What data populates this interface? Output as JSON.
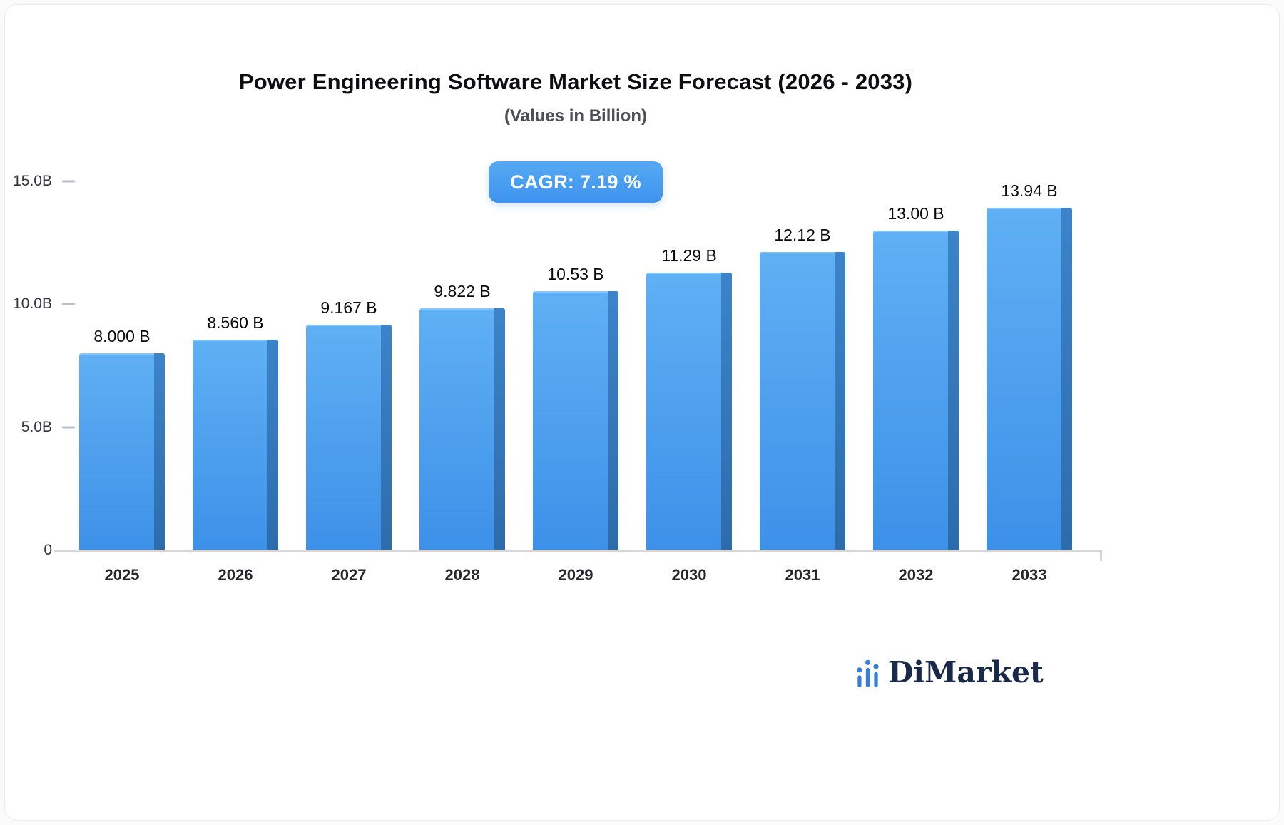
{
  "title": "Power Engineering Software Market Size Forecast (2026 - 2033)",
  "subtitle": "(Values in Billion)",
  "badge": {
    "label": "CAGR: 7.19 %"
  },
  "brand": {
    "name": "DiMarket"
  },
  "colors": {
    "bar_top": "#5fb0f4",
    "bar_bottom": "#3d90e8",
    "bar_side": "#2d6cab",
    "badge_bg": "#3e93ee",
    "brand_icon": "#2f7ee0",
    "brand_text": "#18294a"
  },
  "chart_data": {
    "type": "bar",
    "title": "Power Engineering Software Market Size Forecast (2026 - 2033)",
    "subtitle": "(Values in Billion)",
    "categories": [
      "2025",
      "2026",
      "2027",
      "2028",
      "2029",
      "2030",
      "2031",
      "2032",
      "2033"
    ],
    "values": [
      8.0,
      8.56,
      9.167,
      9.822,
      10.53,
      11.29,
      12.12,
      13.0,
      13.94
    ],
    "value_labels": [
      "8.000 B",
      "8.560 B",
      "9.167 B",
      "9.822 B",
      "10.53 B",
      "11.29 B",
      "12.12 B",
      "13.00 B",
      "13.94 B"
    ],
    "xlabel": "",
    "ylabel": "",
    "ylim": [
      0,
      15
    ],
    "yticks": [
      {
        "value": 0,
        "label": "0"
      },
      {
        "value": 5,
        "label": "5.0B"
      },
      {
        "value": 10,
        "label": "10.0B"
      },
      {
        "value": 15,
        "label": "15.0B"
      }
    ],
    "grid": false,
    "legend": false,
    "annotations": [
      "CAGR: 7.19 %"
    ]
  }
}
